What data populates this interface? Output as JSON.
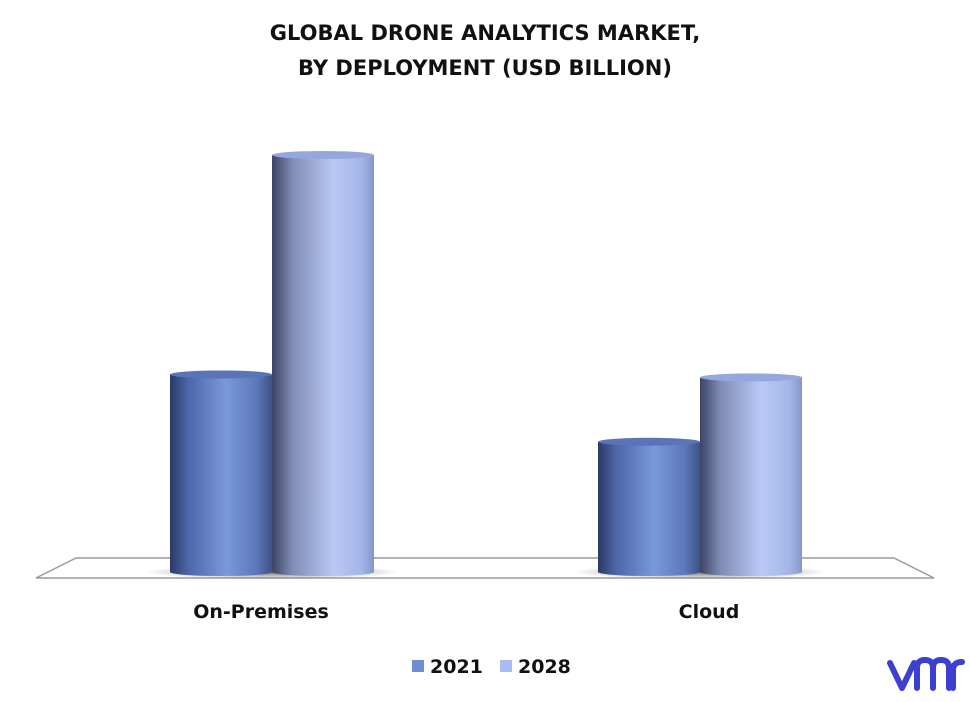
{
  "chart_data": {
    "type": "bar",
    "title_lines": [
      "GLOBAL DRONE ANALYTICS MARKET,",
      "BY DEPLOYMENT  (USD BILLION)"
    ],
    "categories": [
      "On-Premises",
      "Cloud"
    ],
    "series": [
      {
        "name": "2021",
        "values": [
          1.35,
          0.89
        ],
        "color": "#6f8fd0"
      },
      {
        "name": "2028",
        "values": [
          2.85,
          1.33
        ],
        "color": "#a9bcf0"
      }
    ],
    "ylim": [
      0,
      3
    ],
    "grid": false,
    "legend_position": "bottom",
    "bar_style": "cylinder"
  },
  "logo": {
    "text": "vmr",
    "color": "#3d3fd0"
  }
}
